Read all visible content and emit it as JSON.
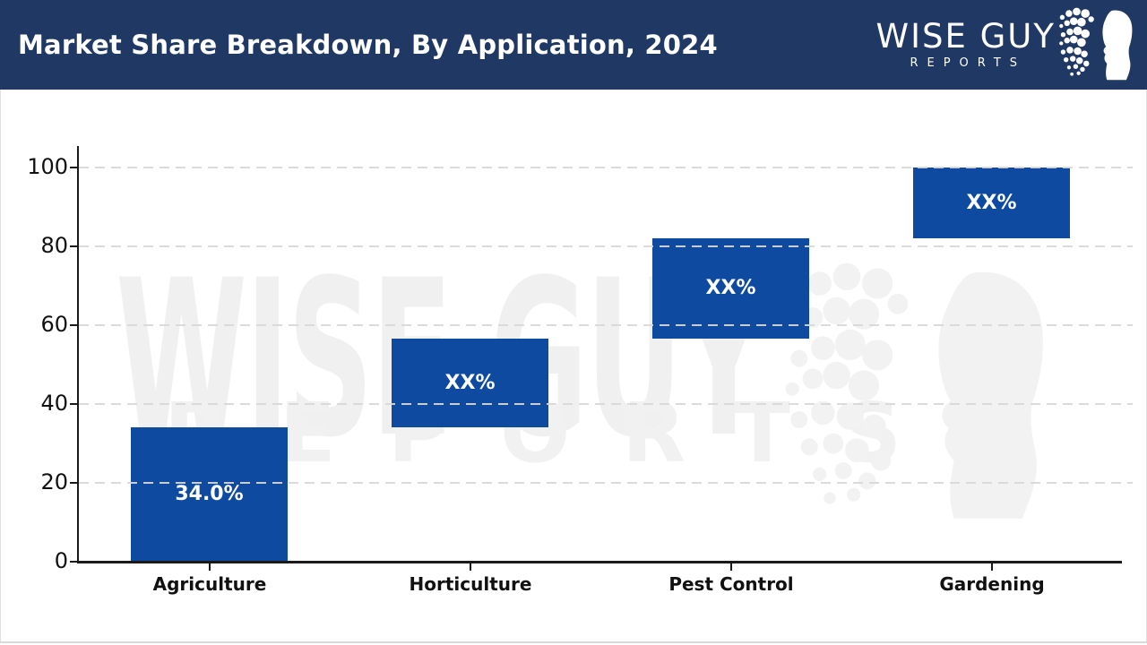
{
  "header": {
    "title": "Market Share Breakdown, By Application, 2024",
    "logo_line1": "WISE GUY",
    "logo_line2": "REPORTS"
  },
  "watermark": {
    "line1": "WISE GUY",
    "line2": "REPORTS"
  },
  "chart_data": {
    "type": "bar",
    "subtype": "waterfall",
    "title": "Market Share Breakdown, By Application, 2024",
    "categories": [
      "Agriculture",
      "Horticulture",
      "Pest Control",
      "Gardening"
    ],
    "segments": [
      {
        "category": "Agriculture",
        "start": 0,
        "end": 34,
        "label": "34.0%"
      },
      {
        "category": "Horticulture",
        "start": 34,
        "end": 56.5,
        "label": "XX%"
      },
      {
        "category": "Pest Control",
        "start": 56.5,
        "end": 82,
        "label": "XX%"
      },
      {
        "category": "Gardening",
        "start": 82,
        "end": 100,
        "label": "XX%"
      }
    ],
    "xlabel": "",
    "ylabel": "",
    "ylim": [
      0,
      100
    ],
    "yticks": [
      0,
      20,
      40,
      60,
      80,
      100
    ],
    "grid": "horizontal-dashed",
    "legend": "none"
  },
  "colors": {
    "header_bg": "#1f3864",
    "bar": "#0d4aa0",
    "bar_label": "#ffffff",
    "axis": "#1a1a1a",
    "tick_text": "#111111",
    "gridline": "#d8d8d8",
    "watermark": "#f0f0f0",
    "border": "#d9d9d9"
  }
}
